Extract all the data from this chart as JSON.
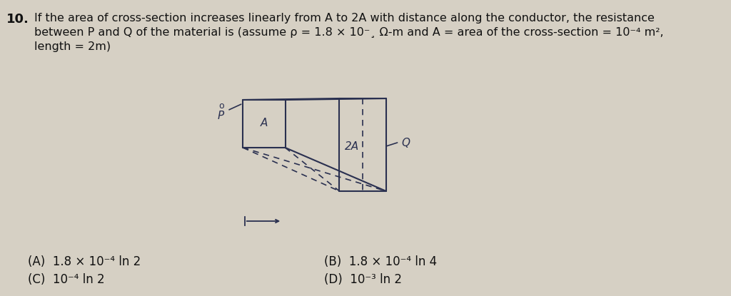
{
  "question_number": "10.",
  "question_text_line1": "If the area of cross-section increases linearly from A to 2A with distance along the conductor, the resistance",
  "question_text_line2": "between P and Q of the material is (assume ρ = 1.8 × 10⁻¸ Ω-m and A = area of the cross-section = 10⁻⁴ m²,",
  "question_text_line3": "length = 2m)",
  "options_A": "(A)  1.8 × 10⁻⁴ ln 2",
  "options_C": "(C)  10⁻⁴ ln 2",
  "options_B": "(B)  1.8 × 10⁻⁴ ln 4",
  "options_D": "(D)  10⁻³ ln 2",
  "bg_color": "#d6d0c4",
  "text_color": "#111111",
  "line_color": "#2a3050"
}
